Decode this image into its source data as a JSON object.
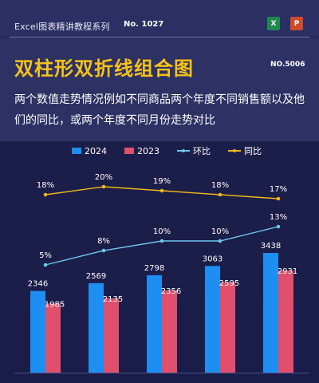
{
  "header": {
    "series_title": "Excel图表精讲教程系列",
    "series_no": "No. 1027",
    "excel_icon": "X",
    "ppt_icon": "P",
    "main_title": "双柱形双折线组合图",
    "tutorial_no": "NO.5006",
    "description": "两个数值走势情况例如不同商品两个年度不同销售额以及他们的同比，或两个年度不同月份走势对比"
  },
  "colors": {
    "bar_2024": "#1e8ff2",
    "bar_2023": "#e04f6c",
    "line_huanbi": "#6fc6ef",
    "line_tongbi": "#f2b51c",
    "title_yellow": "#f6c21a",
    "background": "#1b1f4d"
  },
  "chart_data": {
    "type": "bar",
    "categories": [
      "",
      "",
      "",
      "",
      ""
    ],
    "series": [
      {
        "name": "2024",
        "type": "bar",
        "values": [
          2346,
          2569,
          2798,
          3063,
          3438
        ],
        "labels": [
          "2346",
          "2569",
          "2798",
          "3063",
          "3438"
        ]
      },
      {
        "name": "2023",
        "type": "bar",
        "values": [
          1985,
          2135,
          2356,
          2595,
          2931
        ],
        "labels": [
          "1985",
          "2135",
          "2356",
          "2595",
          "2931"
        ]
      },
      {
        "name": "环比",
        "type": "line",
        "values": [
          5,
          8,
          10,
          10,
          13
        ],
        "labels": [
          "5%",
          "8%",
          "10%",
          "10%",
          "13%"
        ]
      },
      {
        "name": "同比",
        "type": "line",
        "values": [
          18,
          20,
          19,
          18,
          17
        ],
        "labels": [
          "18%",
          "20%",
          "19%",
          "18%",
          "17%"
        ]
      }
    ],
    "legend_position": "top-center",
    "grid": false
  }
}
